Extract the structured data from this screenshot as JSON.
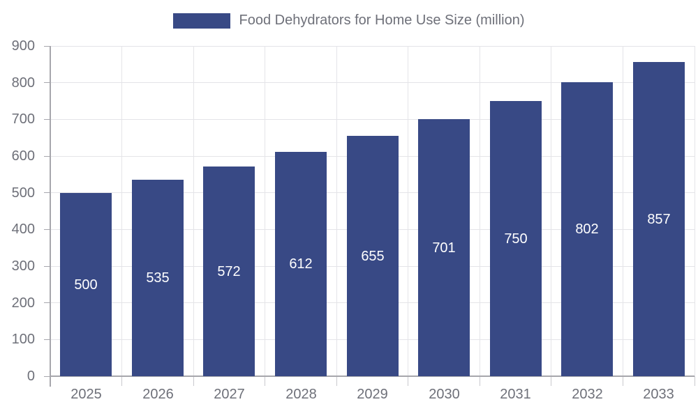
{
  "legend": {
    "label": "Food Dehydrators for Home Use Size (million)"
  },
  "chart_data": {
    "type": "bar",
    "title": "Food Dehydrators for Home Use Size (million)",
    "categories": [
      "2025",
      "2026",
      "2027",
      "2028",
      "2029",
      "2030",
      "2031",
      "2032",
      "2033"
    ],
    "values": [
      500,
      535,
      572,
      612,
      655,
      701,
      750,
      802,
      857
    ],
    "xlabel": "",
    "ylabel": "",
    "ylim": [
      0,
      900
    ],
    "yticks": [
      0,
      100,
      200,
      300,
      400,
      500,
      600,
      700,
      800,
      900
    ],
    "grid": true,
    "legend_position": "top-center",
    "bar_color": "#384985",
    "value_label_color": "#FFFFFF",
    "axis_text_color": "#6E7079",
    "axis_line_color": "#A6A6AC",
    "gridline_color": "#E4E4E8"
  }
}
